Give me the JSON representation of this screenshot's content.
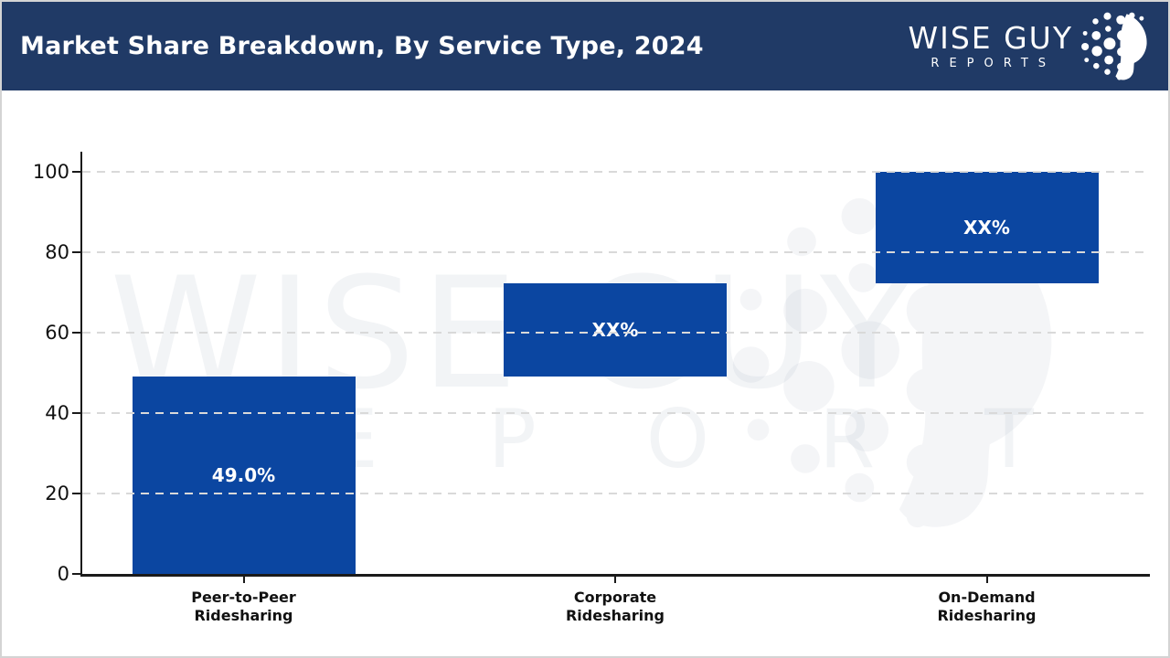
{
  "page": {
    "bg": "#FFFFFF",
    "border_color": "#D4D4D4"
  },
  "header": {
    "title": "Market Share Breakdown, By Service Type, 2024",
    "bg_color": "#203A66",
    "logo": {
      "line1": "WISE GUY",
      "line2": "REPORTS",
      "face_icon": "dotted-face-profile"
    }
  },
  "watermark": {
    "line1": "WISE GUY",
    "line2": "R E P O R T S"
  },
  "chart_data": {
    "type": "bar",
    "subtype": "floating-waterfall",
    "title": "Market Share Breakdown, By Service Type, 2024",
    "categories": [
      "Peer-to-Peer\nRidesharing",
      "Corporate\nRidesharing",
      "On-Demand\nRidesharing"
    ],
    "bars": [
      {
        "category": "Peer-to-Peer\nRidesharing",
        "start": 0,
        "end": 49.0,
        "label": "49.0%"
      },
      {
        "category": "Corporate\nRidesharing",
        "start": 49.0,
        "end": 72.3,
        "label": "XX%"
      },
      {
        "category": "On-Demand\nRidesharing",
        "start": 72.3,
        "end": 100.0,
        "label": "XX%"
      }
    ],
    "ylim": [
      0,
      100
    ],
    "yticks": [
      0,
      20,
      40,
      60,
      80,
      100
    ],
    "grid": {
      "axis": "y",
      "style": "dashed",
      "color": "#D9D9D9"
    },
    "bar_color": "#0B46A1",
    "bar_label_color": "#FFFFFF",
    "axis_color": "#1A1A1A",
    "tick_label_color": "#111111",
    "legend": null
  }
}
